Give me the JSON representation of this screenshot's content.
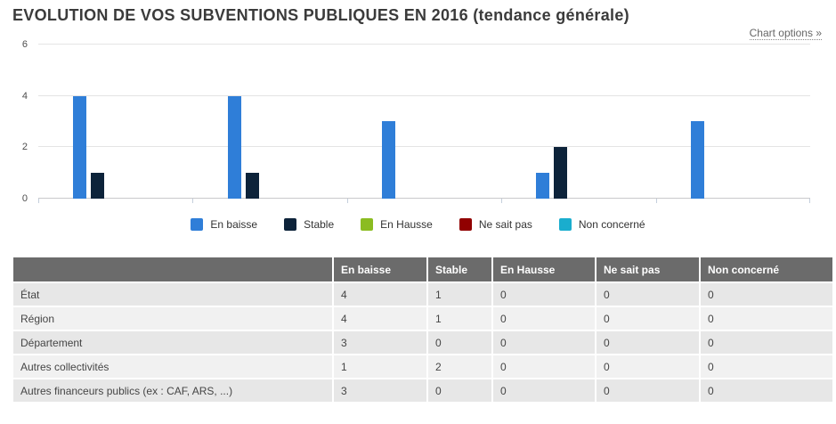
{
  "header": {
    "title": "EVOLUTION DE VOS SUBVENTIONS PUBLIQUES EN 2016 (tendance générale)",
    "chart_options_label": "Chart options »"
  },
  "chart_data": {
    "type": "bar",
    "title": "EVOLUTION DE VOS SUBVENTIONS PUBLIQUES EN 2016 (tendance générale)",
    "categories": [
      "État",
      "Région",
      "Département",
      "Autres collectivités",
      "Autres financeurs publics (ex : CAF, ARS, ...)"
    ],
    "series": [
      {
        "name": "En baisse",
        "color": "#2f7ed8",
        "values": [
          4,
          4,
          3,
          1,
          3
        ]
      },
      {
        "name": "Stable",
        "color": "#0d233a",
        "values": [
          1,
          1,
          0,
          2,
          0
        ]
      },
      {
        "name": "En Hausse",
        "color": "#8bbc21",
        "values": [
          0,
          0,
          0,
          0,
          0
        ]
      },
      {
        "name": "Ne sait pas",
        "color": "#910000",
        "values": [
          0,
          0,
          0,
          0,
          0
        ]
      },
      {
        "name": "Non concerné",
        "color": "#1aadce",
        "values": [
          0,
          0,
          0,
          0,
          0
        ]
      }
    ],
    "xlabel": "",
    "ylabel": "",
    "ylim": [
      0,
      6
    ],
    "yticks": [
      0,
      2,
      4,
      6
    ],
    "grid": true,
    "legend_position": "bottom"
  },
  "table": {
    "columns": [
      "",
      "En baisse",
      "Stable",
      "En Hausse",
      "Ne sait pas",
      "Non concerné"
    ],
    "rows": [
      {
        "label": "État",
        "values": [
          4,
          1,
          0,
          0,
          0
        ]
      },
      {
        "label": "Région",
        "values": [
          4,
          1,
          0,
          0,
          0
        ]
      },
      {
        "label": "Département",
        "values": [
          3,
          0,
          0,
          0,
          0
        ]
      },
      {
        "label": "Autres collectivités",
        "values": [
          1,
          2,
          0,
          0,
          0
        ]
      },
      {
        "label": "Autres financeurs publics (ex : CAF, ARS, ...)",
        "values": [
          3,
          0,
          0,
          0,
          0
        ]
      }
    ]
  }
}
